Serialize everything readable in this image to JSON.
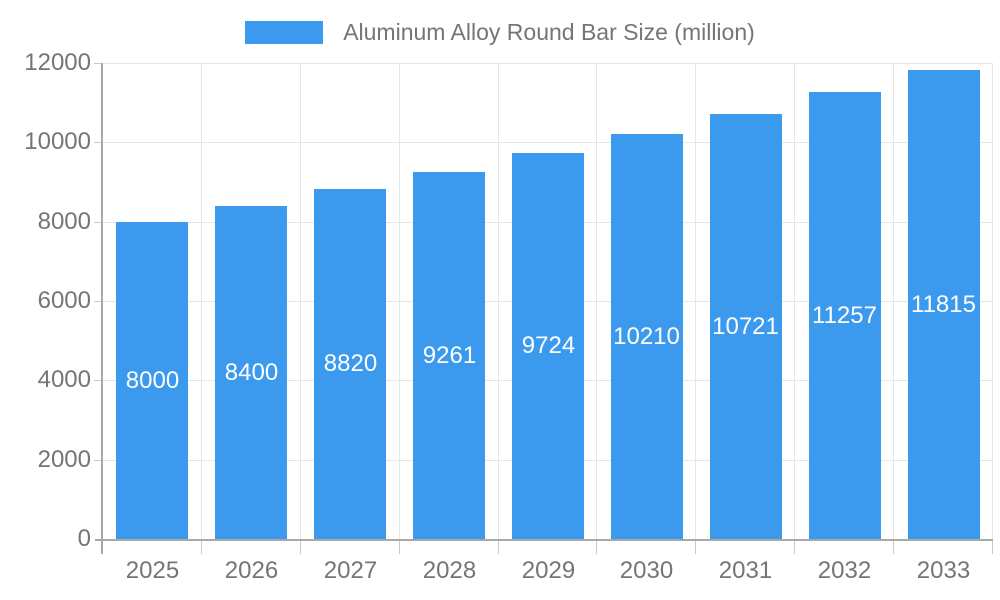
{
  "chart_data": {
    "type": "bar",
    "title": "",
    "legend": {
      "label": "Aluminum Alloy Round Bar Size (million)",
      "position": "top"
    },
    "categories": [
      "2025",
      "2026",
      "2027",
      "2028",
      "2029",
      "2030",
      "2031",
      "2032",
      "2033"
    ],
    "series": [
      {
        "name": "Aluminum Alloy Round Bar Size (million)",
        "values": [
          8000,
          8400,
          8820,
          9261,
          9724,
          10210,
          10721,
          11257,
          11815
        ]
      }
    ],
    "y_ticks": [
      0,
      2000,
      4000,
      6000,
      8000,
      10000,
      12000
    ],
    "ylim": [
      0,
      12000
    ],
    "xlabel": "",
    "ylabel": "",
    "grid": true,
    "bar_labels_shown": true,
    "colors": {
      "bar": "#3b99ee",
      "bar_label": "#ffffff",
      "grid_line": "#e6e6e6",
      "axis_line": "#a8a8a8",
      "tick_mark": "#c9c9c9",
      "axis_text": "#757575",
      "legend_text": "#757575",
      "background": "#ffffff"
    }
  }
}
